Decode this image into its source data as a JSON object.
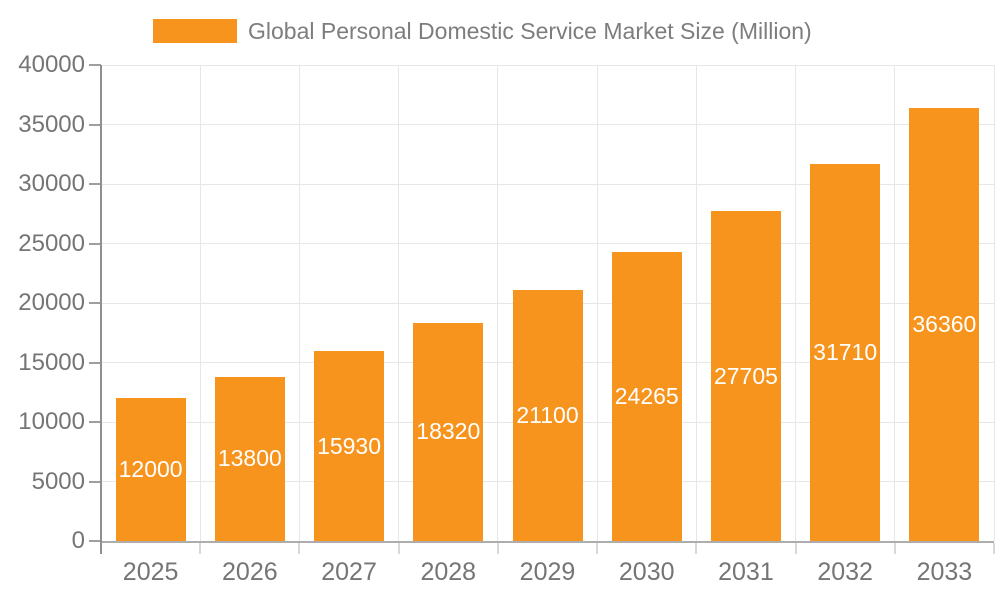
{
  "chart_data": {
    "type": "bar",
    "title": "Global Personal Domestic Service Market Size (Million)",
    "categories": [
      "2025",
      "2026",
      "2027",
      "2028",
      "2029",
      "2030",
      "2031",
      "2032",
      "2033"
    ],
    "values": [
      12000,
      13800,
      15930,
      18320,
      21100,
      24265,
      27705,
      31710,
      36360
    ],
    "series_name": "Global Personal Domestic Service Market Size (Million)",
    "xlabel": "",
    "ylabel": "",
    "ylim": [
      0,
      40000
    ],
    "yticks": [
      0,
      5000,
      10000,
      15000,
      20000,
      25000,
      30000,
      35000,
      40000
    ],
    "grid": "horizontal and vertical light-gray gridlines",
    "legend_position": "top",
    "value_labels": "white, centered inside each bar"
  },
  "colors": {
    "bar": "#F7941E",
    "value_text": "#FFFFFF",
    "grid": "#E7E7E7",
    "axis_y": "#8F8F8F",
    "axis_x": "#ADADAD",
    "tick_y": "#9E9E9E",
    "tick_x": "#D8D8D8",
    "axis_text": "#757575",
    "title_text": "#7D7D7D",
    "background": "#FFFFFF"
  }
}
